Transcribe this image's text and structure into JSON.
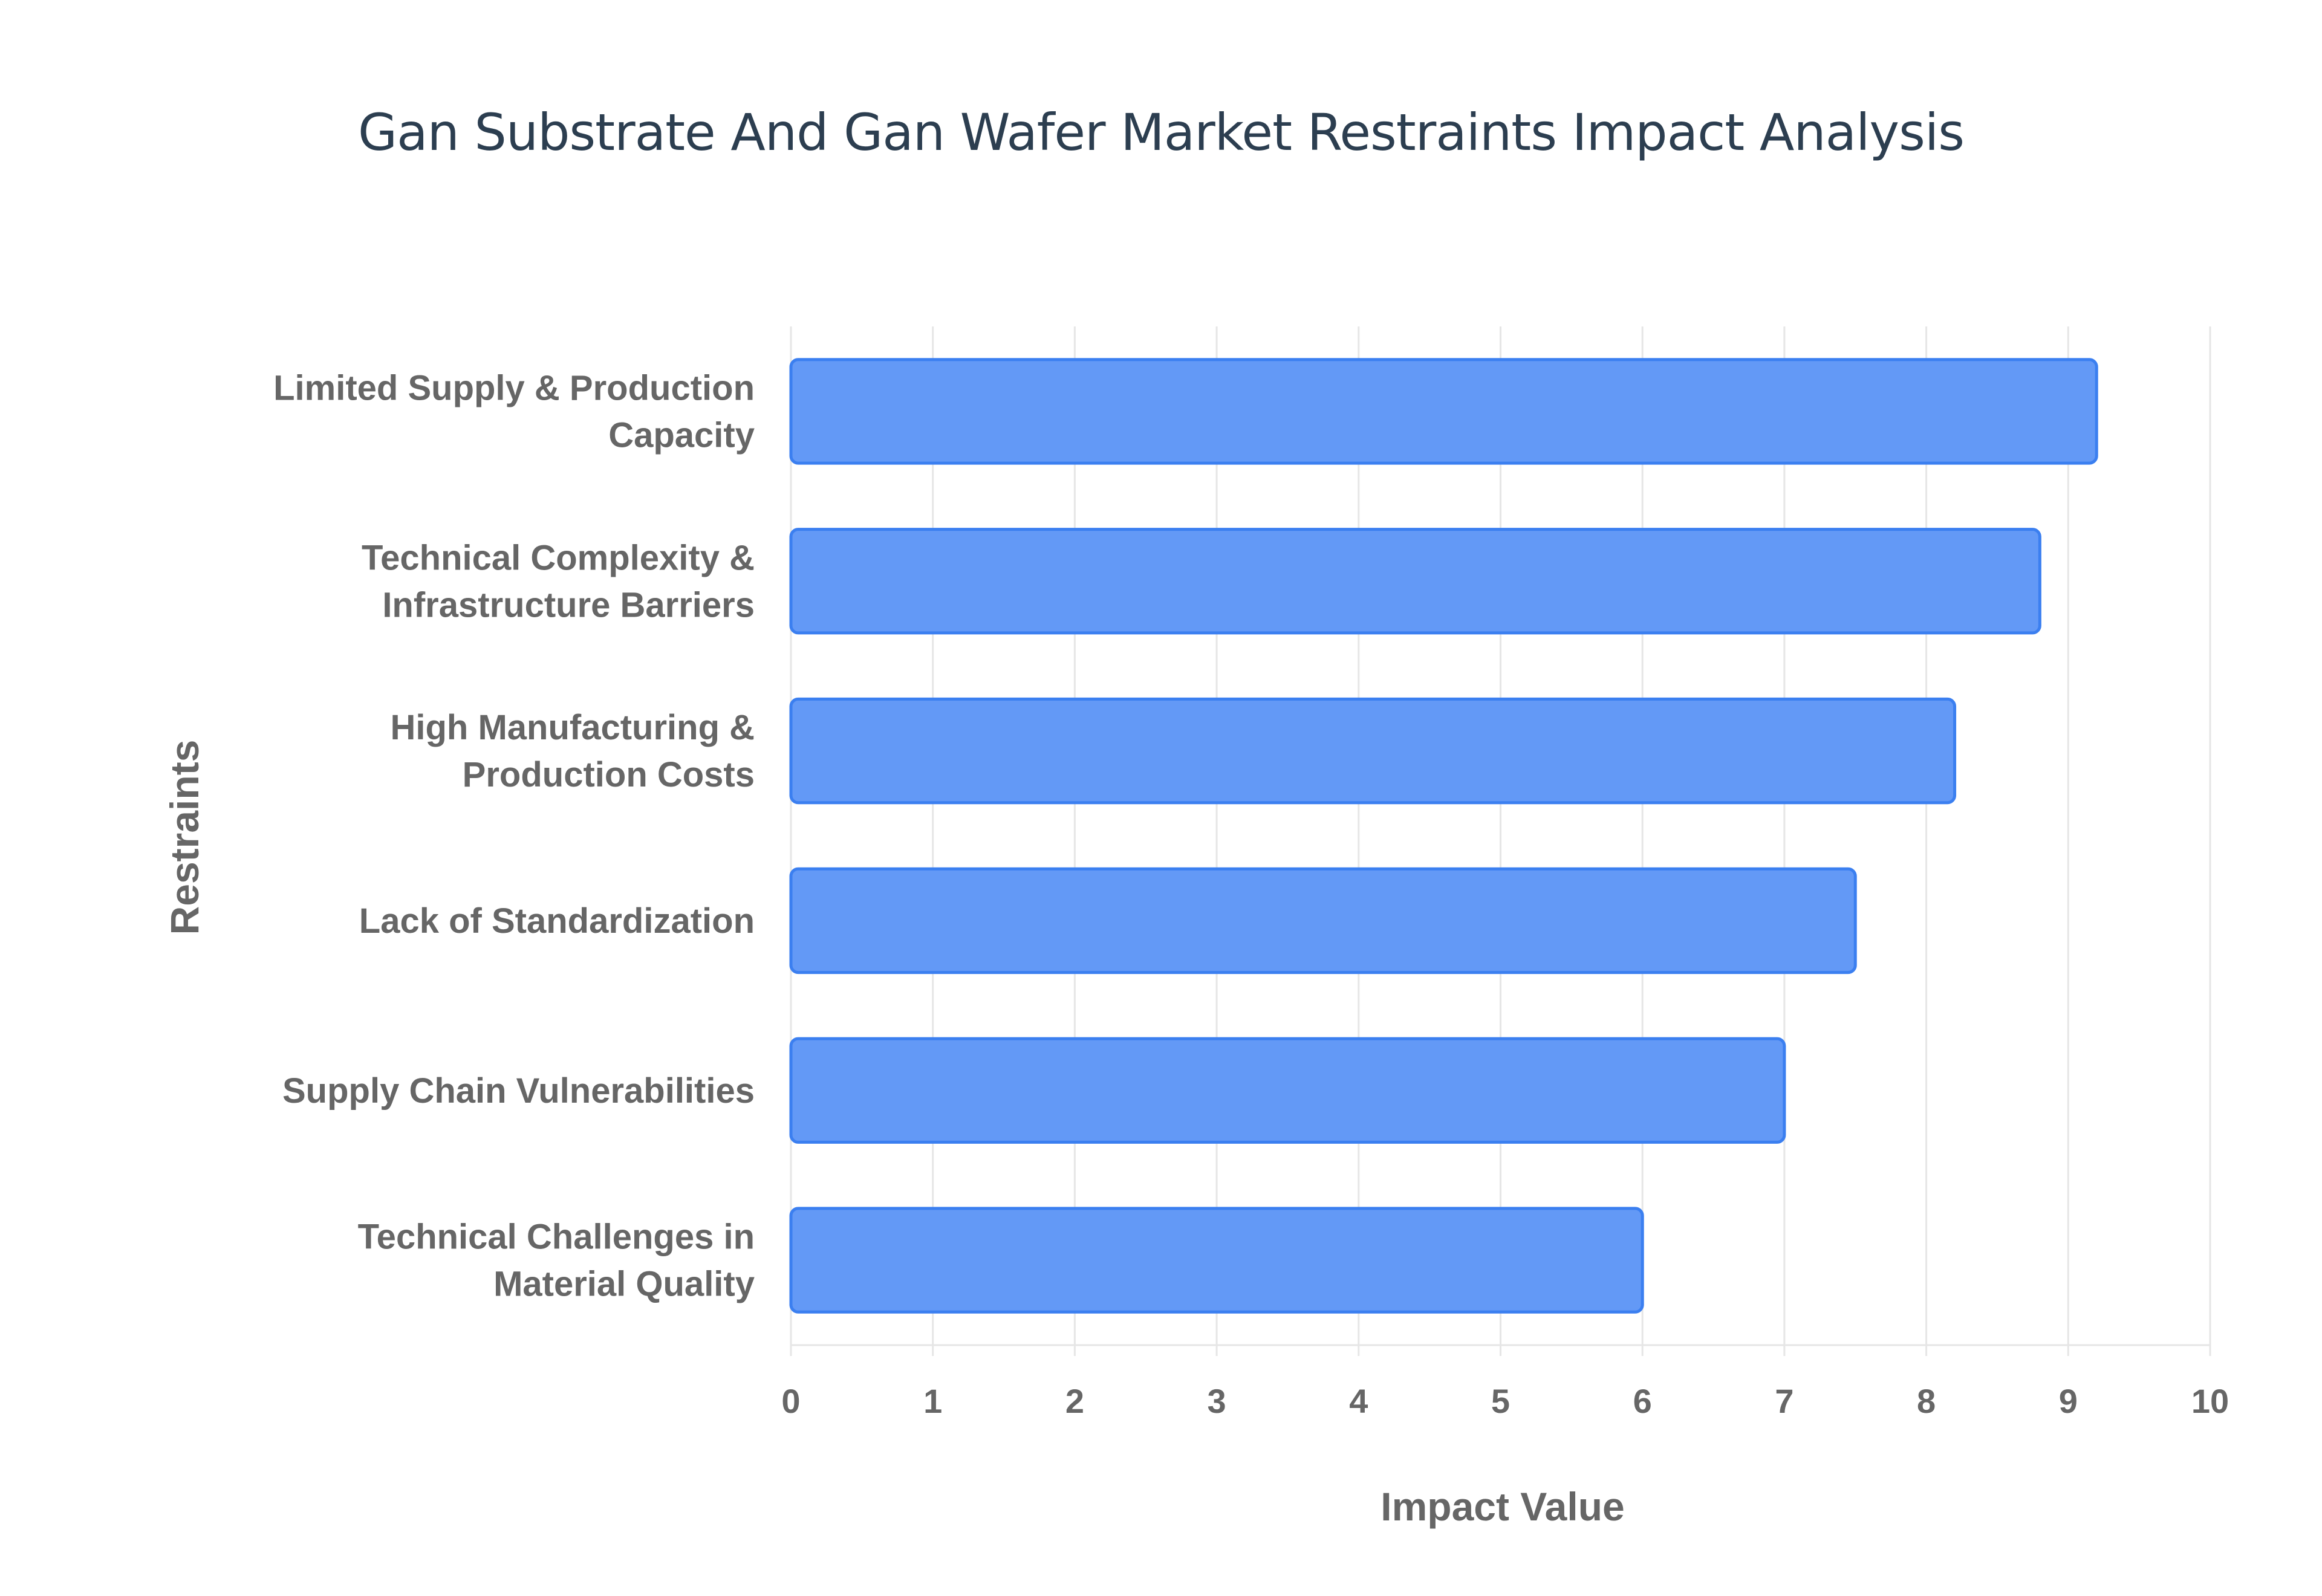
{
  "chart_data": {
    "type": "bar",
    "orientation": "horizontal",
    "title": "Gan Substrate And Gan Wafer Market Restraints Impact Analysis",
    "xlabel": "Impact Value",
    "ylabel": "Restraints",
    "xlim": [
      0,
      10
    ],
    "x_ticks": [
      0,
      1,
      2,
      3,
      4,
      5,
      6,
      7,
      8,
      9,
      10
    ],
    "grid": true,
    "categories": [
      [
        "Limited Supply & Production",
        "Capacity"
      ],
      [
        "Technical Complexity &",
        "Infrastructure Barriers"
      ],
      [
        "High Manufacturing &",
        "Production Costs"
      ],
      [
        "Lack of Standardization"
      ],
      [
        "Supply Chain Vulnerabilities"
      ],
      [
        "Technical Challenges in",
        "Material Quality"
      ]
    ],
    "values": [
      9.2,
      8.8,
      8.2,
      7.5,
      7.0,
      6.0
    ],
    "colors": {
      "bar_fill": "#6399f6",
      "bar_stroke": "#3b7ff0",
      "grid": "#e6e6e6",
      "text": "#666666",
      "title": "#2c3e50"
    }
  }
}
